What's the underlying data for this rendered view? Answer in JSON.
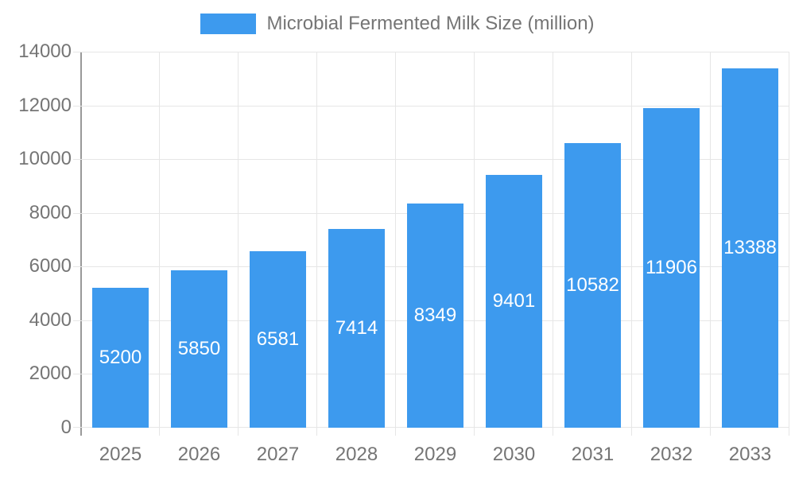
{
  "legend": {
    "label": "Microbial Fermented Milk Size (million)"
  },
  "colors": {
    "bar": "#3D9AEE",
    "axis_text": "#757575",
    "grid": "#E6E6E6",
    "axis_line": "#999999",
    "value_label": "#FFFFFF",
    "background": "#FFFFFF"
  },
  "chart_data": {
    "type": "bar",
    "title": "Microbial Fermented Milk Size (million)",
    "categories": [
      "2025",
      "2026",
      "2027",
      "2028",
      "2029",
      "2030",
      "2031",
      "2032",
      "2033"
    ],
    "series": [
      {
        "name": "Microbial Fermented Milk Size (million)",
        "values": [
          5200,
          5850,
          6581,
          7414,
          8349,
          9401,
          10582,
          11906,
          13388
        ]
      }
    ],
    "value_labels_shown": true,
    "value_label_position": "inside-center",
    "xlabel": "",
    "ylabel": "",
    "ylim": [
      0,
      14000
    ],
    "ytick_step": 2000,
    "yticks": [
      0,
      2000,
      4000,
      6000,
      8000,
      10000,
      12000,
      14000
    ],
    "grid": true,
    "legend_position": "top-center",
    "bar_color": "#3D9AEE"
  }
}
